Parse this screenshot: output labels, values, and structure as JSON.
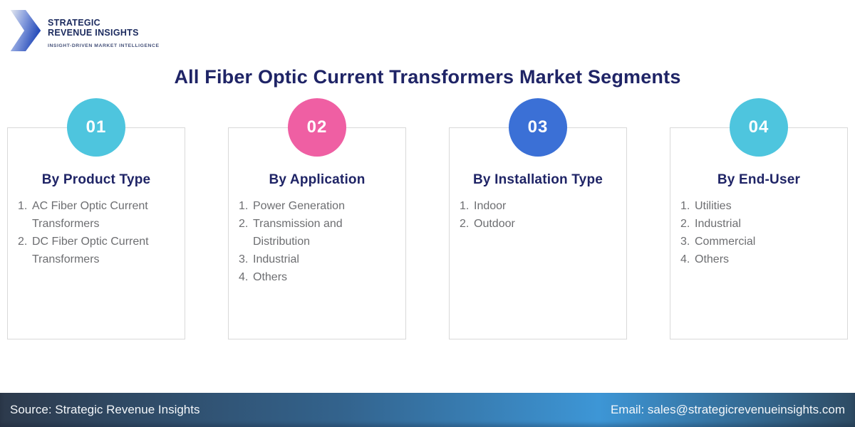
{
  "logo": {
    "name_line1": "STRATEGIC",
    "name_line2": "REVENUE INSIGHTS",
    "tagline": "INSIGHT-DRIVEN MARKET INTELLIGENCE"
  },
  "title": "All Fiber Optic Current Transformers Market Segments",
  "cards": [
    {
      "number": "01",
      "accent": "#4ec5de",
      "title": "By Product Type",
      "items": [
        "AC Fiber Optic Current Transformers",
        "DC Fiber Optic Current Transformers"
      ]
    },
    {
      "number": "02",
      "accent": "#ef5fa3",
      "title": "By Application",
      "items": [
        "Power Generation",
        "Transmission and Distribution",
        "Industrial",
        "Others"
      ]
    },
    {
      "number": "03",
      "accent": "#3b70d6",
      "title": "By Installation Type",
      "items": [
        "Indoor",
        "Outdoor"
      ]
    },
    {
      "number": "04",
      "accent": "#4ec5de",
      "title": "By End-User",
      "items": [
        "Utilities",
        "Industrial",
        "Commercial",
        "Others"
      ]
    }
  ],
  "footer": {
    "source": "Source: Strategic Revenue Insights",
    "email": "Email: sales@strategicrevenueinsights.com"
  }
}
